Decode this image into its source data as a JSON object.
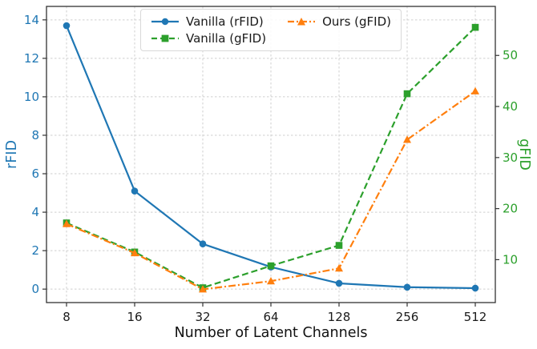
{
  "chart_data": {
    "type": "line",
    "title": "",
    "xlabel": "Number of Latent Channels",
    "x_categories": [
      "8",
      "16",
      "32",
      "64",
      "128",
      "256",
      "512"
    ],
    "grid": true,
    "legend_position": "top-center",
    "left_axis": {
      "label": "rFID",
      "color": "#1f77b4",
      "ticks": [
        0,
        2,
        4,
        6,
        8,
        10,
        12,
        14
      ],
      "range": [
        -0.7,
        14.7
      ]
    },
    "right_axis": {
      "label": "gFID",
      "color": "#2ca02c",
      "ticks": [
        10,
        20,
        30,
        40,
        50
      ],
      "range": [
        1.6,
        59.6
      ]
    },
    "series": [
      {
        "name": "Vanilla (rFID)",
        "axis": "left",
        "color": "#1f77b4",
        "marker": "circle",
        "line_style": "solid",
        "values": [
          13.7,
          5.1,
          2.35,
          1.15,
          0.3,
          0.1,
          0.05
        ]
      },
      {
        "name": "Vanilla (gFID)",
        "axis": "right",
        "color": "#2ca02c",
        "marker": "square",
        "line_style": "dashed",
        "values": [
          17.2,
          11.5,
          4.5,
          8.8,
          12.8,
          42.5,
          55.5
        ]
      },
      {
        "name": "Ours (gFID)",
        "axis": "right",
        "color": "#ff7f0e",
        "marker": "triangle",
        "line_style": "dashdot",
        "values": [
          17.0,
          11.3,
          4.2,
          5.8,
          8.3,
          33.5,
          43.0
        ]
      }
    ]
  }
}
